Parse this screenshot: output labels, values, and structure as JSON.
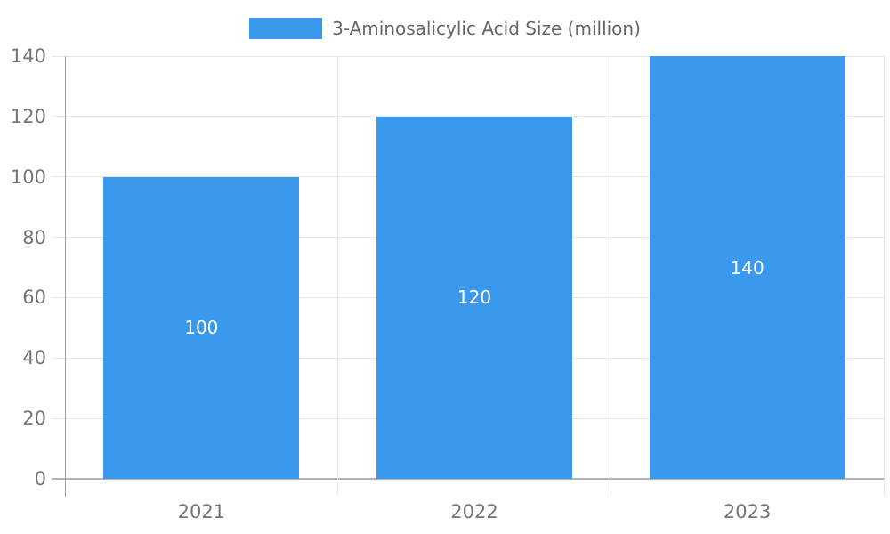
{
  "legend": {
    "label": "3-Aminosalicylic Acid Size (million)"
  },
  "colors": {
    "bar": "#3a99ec",
    "grid": "#e7e7e7",
    "axis_line": "#9e9e9e",
    "baseline": "#b3b3b3",
    "tick_text": "#757575",
    "legend_text": "#666666",
    "data_label_text": "#ffffff",
    "background": "#ffffff"
  },
  "chart_data": {
    "type": "bar",
    "title": "",
    "xlabel": "",
    "ylabel": "",
    "categories": [
      "2021",
      "2022",
      "2023"
    ],
    "series": [
      {
        "name": "3-Aminosalicylic Acid Size (million)",
        "values": [
          100,
          120,
          140
        ],
        "color": "#3a99ec"
      }
    ],
    "data_labels": [
      "100",
      "120",
      "140"
    ],
    "yticks": [
      0,
      20,
      40,
      60,
      80,
      100,
      120,
      140
    ],
    "ylim": [
      0,
      140
    ],
    "grid": true,
    "legend_position": "top",
    "bar_labels_inside": true
  }
}
